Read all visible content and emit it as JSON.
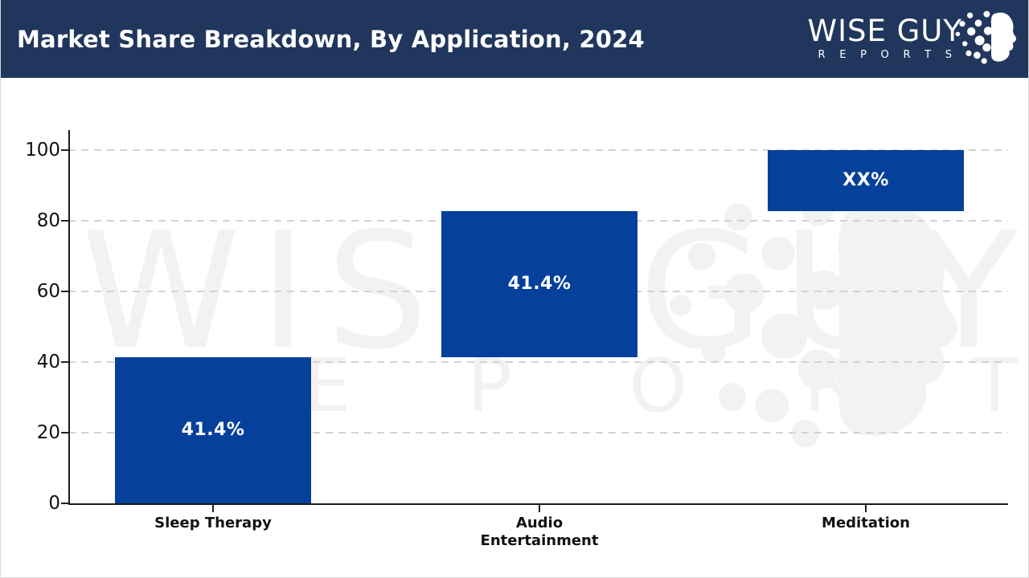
{
  "header": {
    "title": "Market Share Breakdown, By Application, 2024",
    "logo": {
      "line1": "WISE GUY",
      "line2": "R E P O R T S"
    }
  },
  "watermark": {
    "line1": "WISE GUY",
    "line2": "R E P O R T S"
  },
  "chart_data": {
    "type": "bar",
    "subtype": "cumulative-waterfall",
    "title": "Market Share Breakdown, By Application, 2024",
    "categories": [
      "Sleep Therapy",
      "Audio\nEntertainment",
      "Meditation"
    ],
    "segments": [
      {
        "category": "Sleep Therapy",
        "start": 0,
        "end": 41.4,
        "label": "41.4%"
      },
      {
        "category": "Audio Entertainment",
        "start": 41.4,
        "end": 82.8,
        "label": "41.4%"
      },
      {
        "category": "Meditation",
        "start": 82.8,
        "end": 100,
        "label": "XX%"
      }
    ],
    "yticks": [
      0,
      20,
      40,
      60,
      80,
      100
    ],
    "ylim": [
      0,
      105
    ],
    "grid": "dashed-horizontal",
    "legend": "none",
    "bar_color": "#05419b",
    "bar_label_color": "#ffffff"
  },
  "colors": {
    "header_bg": "#21365c",
    "bar": "#05419b",
    "axis": "#1a1a1a",
    "grid": "#d2d2d2",
    "watermark": "#f2f2f2"
  }
}
